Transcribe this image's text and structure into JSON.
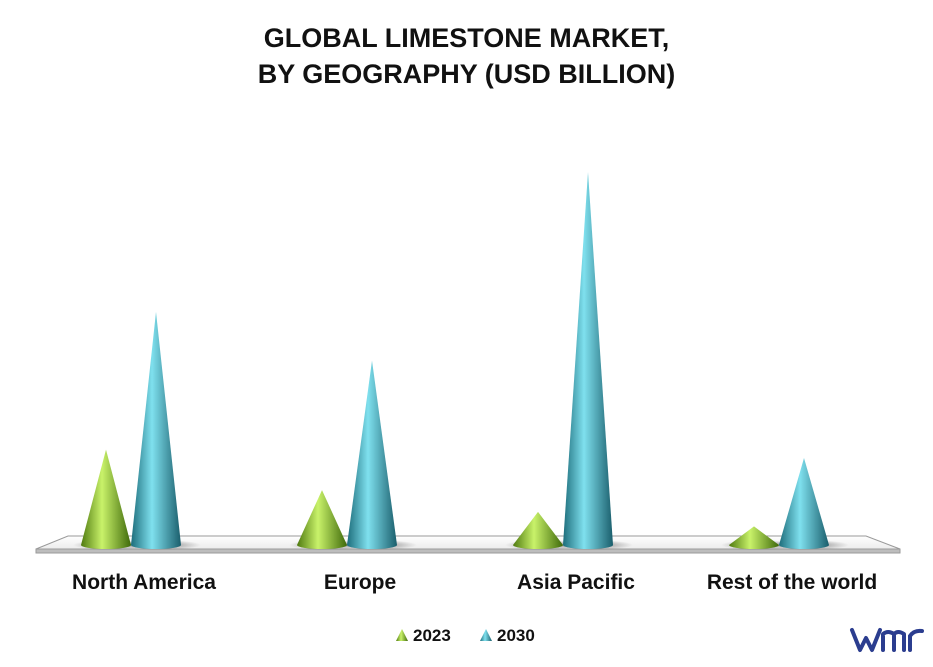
{
  "chart_data": {
    "type": "bar",
    "title_lines": [
      "GLOBAL LIMESTONE MARKET,",
      "BY GEOGRAPHY (USD BILLION)"
    ],
    "categories": [
      "North America",
      "Europe",
      "Asia Pacific",
      "Rest of the world"
    ],
    "series": [
      {
        "name": "2023",
        "values": [
          9.2,
          5.3,
          3.2,
          1.8
        ],
        "color": "#8cc63f"
      },
      {
        "name": "2030",
        "values": [
          22.5,
          17.8,
          36.0,
          8.4
        ],
        "color": "#3aa6b9"
      }
    ],
    "ylim": [
      0,
      36
    ],
    "grid": false,
    "legend_position": "bottom-center",
    "mark_shape": "cone"
  },
  "brand": {
    "logo_icon": "vmr-logo-icon",
    "logo_color": "#2b3d8f"
  }
}
